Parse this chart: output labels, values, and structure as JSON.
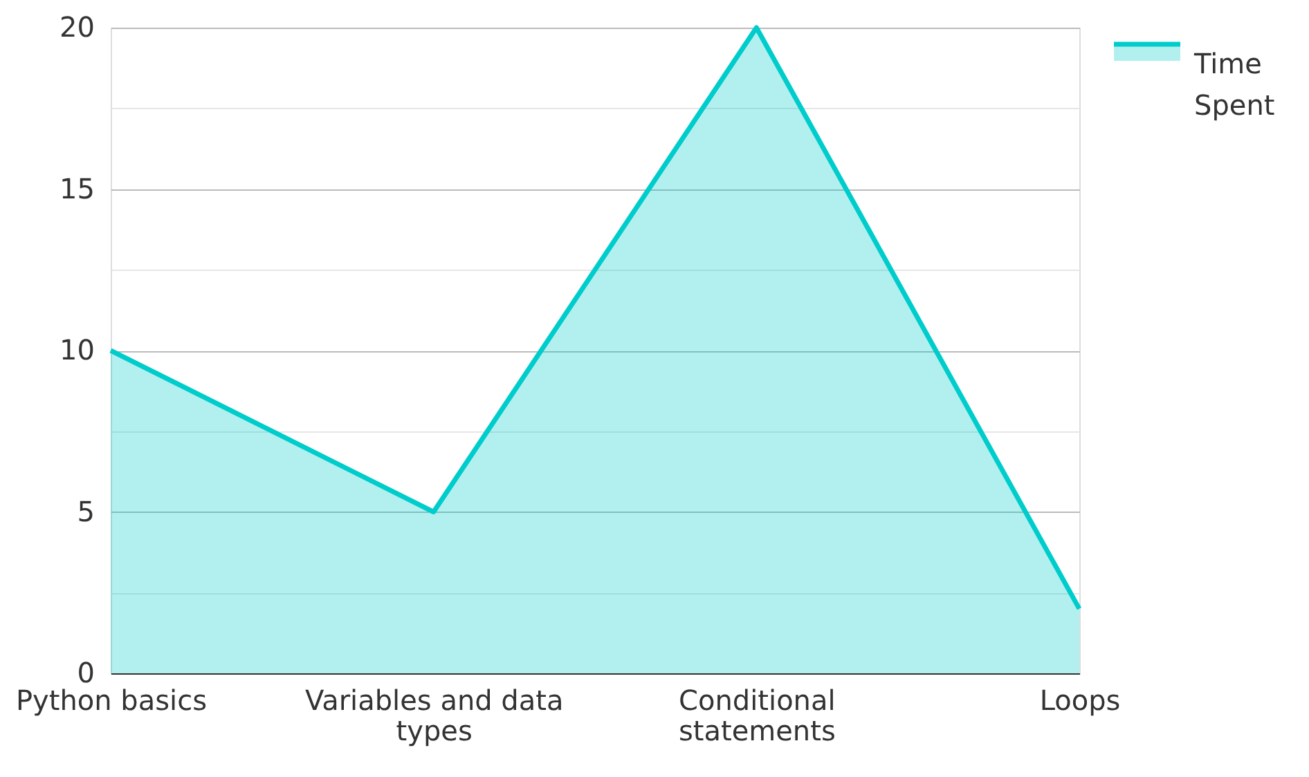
{
  "chart_data": {
    "type": "area",
    "categories": [
      "Python basics",
      "Variables and data types",
      "Conditional statements",
      "Loops"
    ],
    "series": [
      {
        "name": "Time Spent",
        "color": "#00cccc",
        "values": [
          10,
          5,
          20,
          2
        ]
      }
    ],
    "ylim": [
      0,
      20
    ],
    "yticks": [
      0,
      {
        "value": 2.5,
        "label": null
      },
      5,
      {
        "value": 7.5,
        "label": null
      },
      10,
      {
        "value": 12.5,
        "label": null
      },
      15,
      {
        "value": 17.5,
        "label": null
      },
      20
    ],
    "grid": "y",
    "legend": "top right",
    "line_style": "solid",
    "marker": "none"
  }
}
